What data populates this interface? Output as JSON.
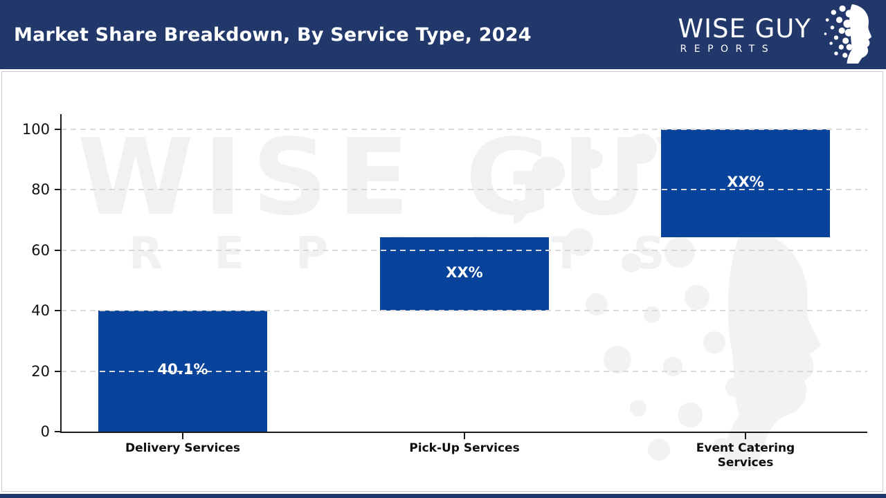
{
  "header": {
    "title": "Market Share Breakdown, By Service Type, 2024",
    "logo": {
      "line1": "WISE GUY",
      "line2": "REPORTS"
    }
  },
  "watermark": {
    "line1": "WISE GUY",
    "line2": "REPORTS"
  },
  "colors": {
    "header_navy": "#22386a",
    "bar_blue": "#08439b",
    "gridline_gray": "#d9d9d9",
    "watermark_gray": "#f1f1f4"
  },
  "chart_data": {
    "type": "bar",
    "subtype": "waterfall",
    "title": "Market Share Breakdown, By Service Type, 2024",
    "categories": [
      "Delivery Services",
      "Pick-Up Services",
      "Event Catering Services"
    ],
    "values": [
      40.1,
      24.2,
      35.7
    ],
    "segments": [
      {
        "start": 0,
        "end": 40.1,
        "label": "40.1%"
      },
      {
        "start": 40.1,
        "end": 64.3,
        "label": "XX%"
      },
      {
        "start": 64.3,
        "end": 100,
        "label": "XX%"
      }
    ],
    "yticks": [
      0,
      20,
      40,
      60,
      80,
      100
    ],
    "ylim": [
      0,
      105
    ],
    "xlabel": "",
    "ylabel": "",
    "grid": "horizontal-dashed",
    "grid_above_bars": true,
    "legend": "none",
    "bar_color": "#08439b"
  }
}
